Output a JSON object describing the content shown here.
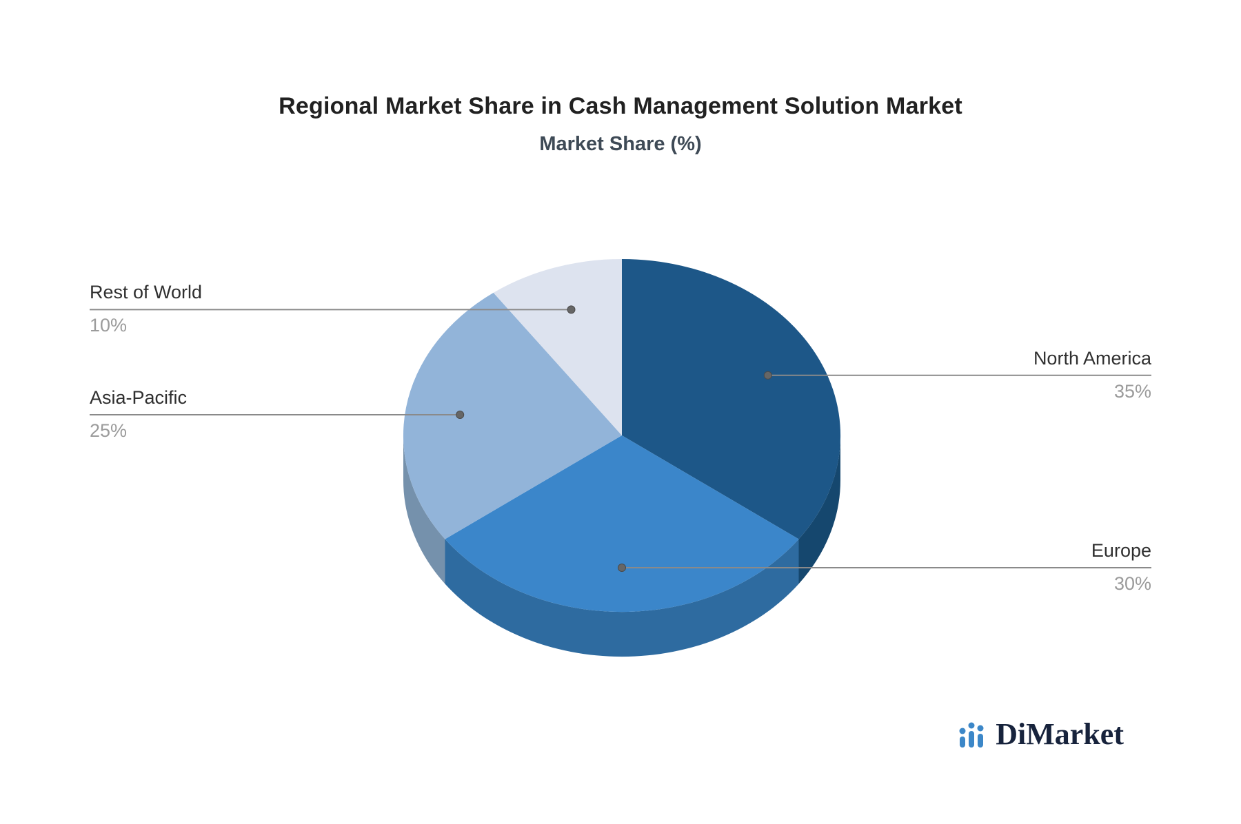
{
  "header": {
    "title": "Regional Market Share in Cash Management Solution Market",
    "subtitle": "Market Share (%)"
  },
  "chart_data": {
    "type": "pie",
    "style": "3d",
    "title": "Regional Market Share in Cash Management Solution Market",
    "subtitle": "Market Share (%)",
    "unit": "%",
    "start_angle": "12-oclock",
    "direction": "clockwise",
    "segments": [
      {
        "label": "North America",
        "value": 35,
        "pct_label": "35%",
        "color": "#1d5788",
        "side_color": "#15476e",
        "callout_side": "right"
      },
      {
        "label": "Europe",
        "value": 30,
        "pct_label": "30%",
        "color": "#3b86ca",
        "side_color": "#2e6ba0",
        "callout_side": "right"
      },
      {
        "label": "Asia-Pacific",
        "value": 25,
        "pct_label": "25%",
        "color": "#92b4d9",
        "side_color": "#7591ac",
        "callout_side": "left"
      },
      {
        "label": "Rest of World",
        "value": 10,
        "pct_label": "10%",
        "color": "#dde3ef",
        "side_color": "#c3cedf",
        "callout_side": "left"
      }
    ],
    "colors": {
      "leader_line": "#8a8a8a",
      "dot_fill": "#666666",
      "dot_ring": "#4a4a4a",
      "label_text": "#2f2f2f",
      "pct_text": "#9b9b9b",
      "background": "#ffffff"
    }
  },
  "branding": {
    "logo_text": "DiMarket",
    "logo_text_color": "#17233c",
    "logo_icon": "bar-chart-with-dots-icon",
    "logo_icon_color": "#3c87c8"
  }
}
